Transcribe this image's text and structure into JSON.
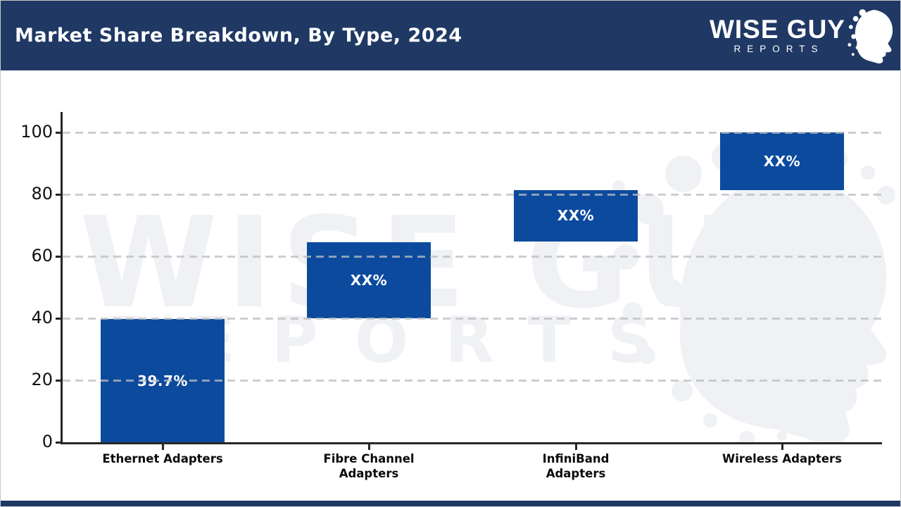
{
  "header": {
    "title": "Market Share Breakdown, By Type, 2024",
    "logo": {
      "line1": "WISE GUY",
      "line2": "REPORTS"
    }
  },
  "watermark": {
    "line1": "WISE GUY",
    "line2": "REPORTS"
  },
  "colors": {
    "header_bg": "#1F3864",
    "bar": "#0C4A9E",
    "axis": "#262626",
    "grid": "#BBBDC0",
    "bar_label": "#FFFFFF",
    "watermark": "#EFF1F4"
  },
  "chart_data": {
    "type": "bar",
    "variant": "floating-segment-waterfall",
    "title": "Market Share Breakdown, By Type, 2024",
    "categories": [
      "Ethernet Adapters",
      "Fibre Channel\nAdapters",
      "InfiniBand\nAdapters",
      "Wireless Adapters"
    ],
    "segments": [
      {
        "category": "Ethernet Adapters",
        "from": 0,
        "to": 39.7,
        "label": "39.7%"
      },
      {
        "category": "Fibre Channel Adapters",
        "from": 40,
        "to": 64.6,
        "label": "XX%"
      },
      {
        "category": "InfiniBand Adapters",
        "from": 64.8,
        "to": 81.4,
        "label": "XX%"
      },
      {
        "category": "Wireless Adapters",
        "from": 81.4,
        "to": 100,
        "label": "XX%"
      }
    ],
    "ylim": [
      0,
      100
    ],
    "yticks": [
      0,
      20,
      40,
      60,
      80,
      100
    ],
    "xlabel": "",
    "ylabel": "",
    "grid": "dashed-horizontal",
    "legend": "none"
  }
}
